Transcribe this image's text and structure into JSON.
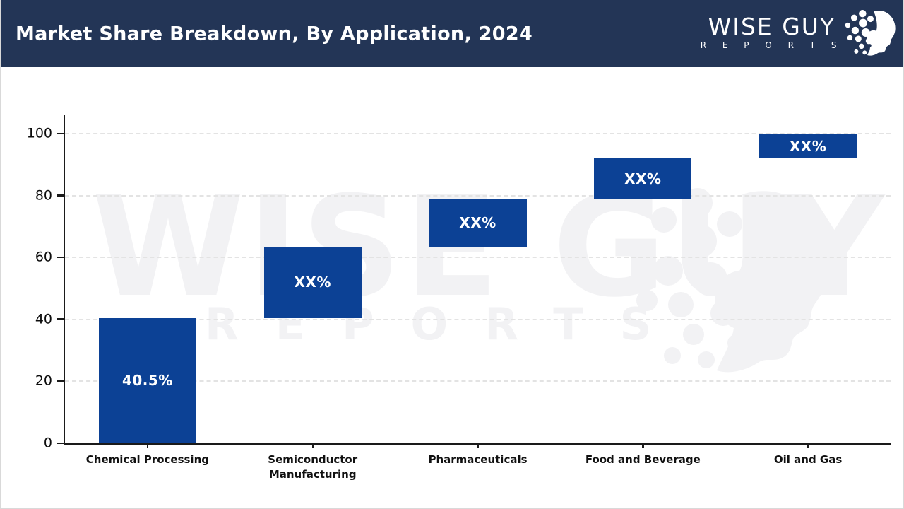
{
  "header": {
    "title": "Market Share Breakdown, By Application, 2024",
    "logo": {
      "line1": "WISE GUY",
      "line2": "R E P O R T S"
    }
  },
  "watermark": {
    "line1": "WISE GUY",
    "line2": "REPORTS"
  },
  "chart_data": {
    "type": "bar",
    "subtype": "waterfall",
    "title": "Market Share Breakdown, By Application, 2024",
    "unit": "percent",
    "categories": [
      "Chemical Processing",
      "Semiconductor Manufacturing",
      "Pharmaceuticals",
      "Food and Beverage",
      "Oil and Gas"
    ],
    "segments": [
      {
        "category": "Chemical Processing",
        "start": 0,
        "end": 40.5,
        "label": "40.5%"
      },
      {
        "category": "Semiconductor Manufacturing",
        "start": 40.5,
        "end": 63.5,
        "label": "XX%"
      },
      {
        "category": "Pharmaceuticals",
        "start": 63.5,
        "end": 79,
        "label": "XX%"
      },
      {
        "category": "Food and Beverage",
        "start": 79,
        "end": 92,
        "label": "XX%"
      },
      {
        "category": "Oil and Gas",
        "start": 92,
        "end": 100,
        "label": "XX%"
      }
    ],
    "yticks": [
      0,
      20,
      40,
      60,
      80,
      100
    ],
    "ylim": [
      0,
      106
    ],
    "xlabel": "",
    "ylabel": "",
    "grid": "horizontal-dashed",
    "legend": null,
    "bar_color": "#0c4195",
    "bar_label_color": "#ffffff"
  },
  "colors": {
    "header_bg": "#233556",
    "bar": "#0c4195",
    "axis": "#1a1a1a",
    "gridline": "#e3e3e3",
    "watermark": "#f2f2f4",
    "frame_border": "#d9d9d9"
  }
}
